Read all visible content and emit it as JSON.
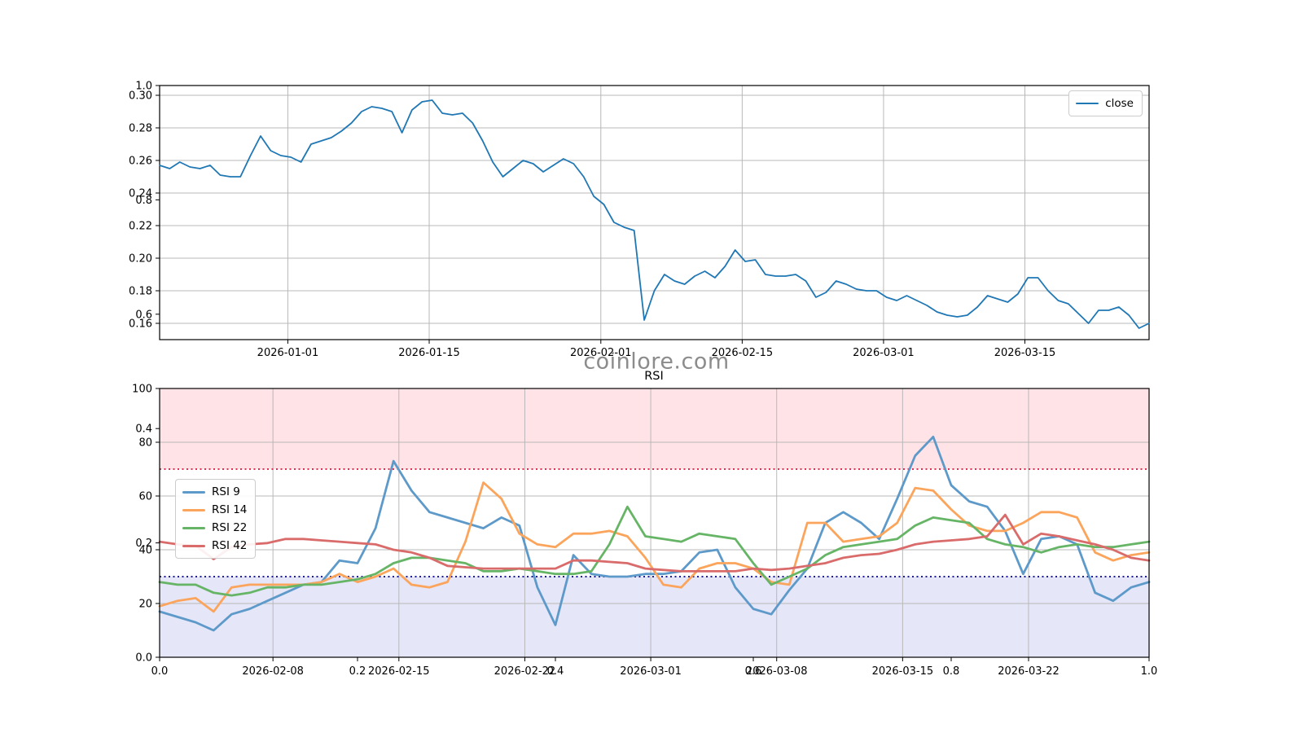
{
  "watermark": "coinlore.com",
  "chart_data": [
    {
      "type": "line",
      "title": "",
      "ylabel": "",
      "xlabel": "",
      "grid": true,
      "legend_position": "upper right",
      "ylim": [
        0.15,
        0.306
      ],
      "y_ticks": [
        0.16,
        0.18,
        0.2,
        0.22,
        0.24,
        0.26,
        0.28,
        0.3
      ],
      "y_tick_labels": [
        "0.16",
        "0.18",
        "0.20",
        "0.22",
        "0.24",
        "0.26",
        "0.28",
        "0.30"
      ],
      "x_tick_labels": [
        "2026-01-01",
        "2026-01-15",
        "2026-02-01",
        "2026-02-15",
        "2026-03-01",
        "2026-03-15"
      ],
      "x_tick_days": [
        12.7,
        26.7,
        43.7,
        57.7,
        71.7,
        85.7
      ],
      "x_start": "2025-12-19",
      "x_end": "2026-03-27",
      "series": [
        {
          "name": "close",
          "color": "#1f77b4",
          "values": [
            0.257,
            0.255,
            0.259,
            0.256,
            0.255,
            0.257,
            0.251,
            0.25,
            0.25,
            0.263,
            0.275,
            0.266,
            0.263,
            0.262,
            0.259,
            0.27,
            0.272,
            0.274,
            0.278,
            0.283,
            0.29,
            0.293,
            0.292,
            0.29,
            0.277,
            0.291,
            0.296,
            0.297,
            0.289,
            0.288,
            0.289,
            0.283,
            0.272,
            0.259,
            0.25,
            0.255,
            0.26,
            0.258,
            0.253,
            0.257,
            0.261,
            0.258,
            0.25,
            0.238,
            0.233,
            0.222,
            0.219,
            0.217,
            0.162,
            0.18,
            0.19,
            0.186,
            0.184,
            0.189,
            0.192,
            0.188,
            0.195,
            0.205,
            0.198,
            0.199,
            0.19,
            0.189,
            0.189,
            0.19,
            0.186,
            0.176,
            0.179,
            0.186,
            0.184,
            0.181,
            0.18,
            0.18,
            0.176,
            0.174,
            0.177,
            0.174,
            0.171,
            0.167,
            0.165,
            0.164,
            0.165,
            0.17,
            0.177,
            0.175,
            0.173,
            0.178,
            0.188,
            0.188,
            0.18,
            0.174,
            0.172,
            0.166,
            0.16,
            0.168,
            0.168,
            0.17,
            0.165,
            0.157,
            0.16
          ]
        }
      ]
    },
    {
      "type": "line",
      "title": "RSI",
      "grid": true,
      "legend_position": "center left",
      "ylim": [
        0,
        100
      ],
      "y_ticks": [
        20,
        40,
        60,
        80,
        100
      ],
      "y_tick_labels": [
        "20",
        "40",
        "60",
        "80",
        "100"
      ],
      "x_tick_labels": [
        "2026-02-08",
        "2026-02-15",
        "2026-02-22",
        "2026-03-01",
        "2026-03-08",
        "2026-03-15",
        "2026-03-22"
      ],
      "x_tick_days": [
        6.3,
        13.3,
        20.3,
        27.3,
        34.3,
        41.3,
        48.3
      ],
      "x_start": "2026-02-02",
      "x_end": "2026-03-29",
      "overbought_level": 70,
      "oversold_level": 30,
      "overbought_line_color": "#dc143c",
      "oversold_line_color": "#00008b",
      "overbought_band_color": "rgba(255,80,100,0.16)",
      "oversold_band_color": "rgba(75,75,215,0.14)",
      "series": [
        {
          "name": "RSI 9",
          "color": "#5e9ac9",
          "values": [
            17,
            15,
            13,
            10,
            16,
            18,
            21,
            24,
            27,
            28,
            36,
            35,
            48,
            73,
            62,
            54,
            52,
            50,
            48,
            52,
            49,
            26,
            12,
            38,
            31,
            30,
            30,
            31,
            31,
            32,
            39,
            40,
            26,
            18,
            16,
            25,
            33,
            50,
            54,
            50,
            44,
            59,
            75,
            82,
            64,
            58,
            56,
            47,
            31,
            44,
            45,
            42,
            24,
            21,
            26,
            28
          ]
        },
        {
          "name": "RSI 14",
          "color": "#fba55c",
          "values": [
            19,
            21,
            22,
            17,
            26,
            27,
            27,
            27,
            27,
            28,
            31,
            28,
            30,
            33,
            27,
            26,
            28,
            43,
            65,
            59,
            46,
            42,
            41,
            46,
            46,
            47,
            45,
            37,
            27,
            26,
            33,
            35,
            35,
            33,
            28,
            27,
            50,
            50,
            43,
            44,
            45,
            50,
            63,
            62,
            55,
            49,
            47,
            47,
            50,
            54,
            54,
            52,
            39,
            36,
            38,
            39
          ]
        },
        {
          "name": "RSI 22",
          "color": "#66b566",
          "values": [
            28,
            27,
            27,
            24,
            23,
            24,
            26,
            26,
            27,
            27,
            28,
            29,
            31,
            35,
            37,
            37,
            36,
            35,
            32,
            32,
            33,
            32,
            31,
            31,
            32,
            42,
            56,
            45,
            44,
            43,
            46,
            45,
            44,
            35,
            27,
            30,
            33,
            38,
            41,
            42,
            43,
            44,
            49,
            52,
            51,
            50,
            44,
            42,
            41,
            39,
            41,
            42,
            41,
            41,
            42,
            43
          ]
        },
        {
          "name": "RSI 42",
          "color": "#d96b6b",
          "values": [
            43,
            42,
            41.5,
            36.5,
            41,
            42,
            42.5,
            44,
            44,
            43.5,
            43,
            42.5,
            42,
            40,
            39,
            37,
            34,
            33.5,
            33,
            33,
            33,
            33,
            33,
            36,
            36,
            35.5,
            35,
            33,
            32.5,
            32,
            32,
            32,
            32,
            33,
            32.5,
            33,
            34,
            35,
            37,
            38,
            38.5,
            40,
            42,
            43,
            43.5,
            44,
            45,
            53,
            42,
            46,
            45,
            43.5,
            42,
            40,
            37,
            36
          ]
        }
      ]
    }
  ],
  "hidden_axis": {
    "x_tick_labels": [
      "0.0",
      "0.2",
      "0.4",
      "0.6",
      "0.8",
      "1.0"
    ],
    "y_tick_labels": [
      "1.0",
      "0.8",
      "0.6",
      "0.4",
      "0.2",
      "0.0"
    ]
  },
  "style": {
    "grid_color": "#b8b8b8",
    "spine_color": "#000000",
    "tick_label_color": "#000000"
  }
}
